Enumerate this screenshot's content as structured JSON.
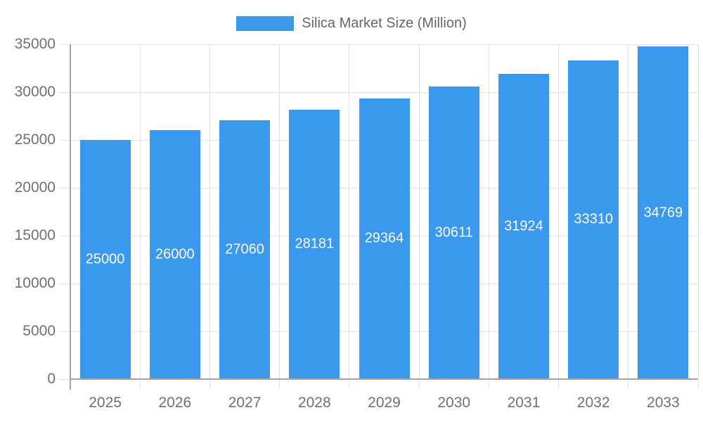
{
  "chart_data": {
    "type": "bar",
    "title": "Silica Market Size (Million)",
    "legend": [
      "Silica Market Size (Million)"
    ],
    "legend_position": "top-center",
    "categories": [
      "2025",
      "2026",
      "2027",
      "2028",
      "2029",
      "2030",
      "2031",
      "2032",
      "2033"
    ],
    "series": [
      {
        "name": "Silica Market Size (Million)",
        "values": [
          25000,
          26000,
          27060,
          28181,
          29364,
          30611,
          31924,
          33310,
          34769
        ]
      }
    ],
    "xlabel": "",
    "ylabel": "",
    "ylim": [
      0,
      35000
    ],
    "yticks": [
      0,
      5000,
      10000,
      15000,
      20000,
      25000,
      30000,
      35000
    ],
    "grid": true,
    "bar_value_labels_shown": true
  },
  "colors": {
    "bar": "#3A99ED",
    "bar_label_text": "#FFFFFF",
    "axis_line": "#A3A3A3",
    "gridline": "#E3E3E3",
    "tick_text": "#707070",
    "legend_text": "#666666",
    "background": "#FFFFFF"
  }
}
